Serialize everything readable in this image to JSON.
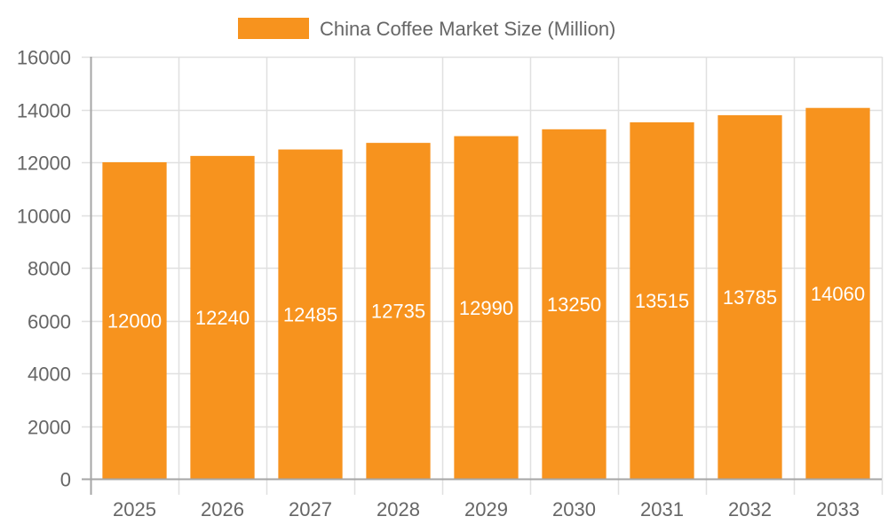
{
  "legend": {
    "label": "China Coffee Market Size (Million)",
    "swatch_color": "#F7931E"
  },
  "colors": {
    "bar": "#F7931E",
    "grid": "#E0E0E0",
    "axis": "#A6A6A6",
    "tick_text": "#666666",
    "value_text": "#FFFFFF"
  },
  "chart_data": {
    "type": "bar",
    "title": "",
    "xlabel": "",
    "ylabel": "",
    "legend": [
      "China Coffee Market Size (Million)"
    ],
    "legend_position": "top",
    "categories": [
      "2025",
      "2026",
      "2027",
      "2028",
      "2029",
      "2030",
      "2031",
      "2032",
      "2033"
    ],
    "series": [
      {
        "name": "China Coffee Market Size (Million)",
        "values": [
          12000,
          12240,
          12485,
          12735,
          12990,
          13250,
          13515,
          13785,
          14060
        ]
      }
    ],
    "values": [
      12000,
      12240,
      12485,
      12735,
      12990,
      13250,
      13515,
      13785,
      14060
    ],
    "ylim": [
      0,
      16000
    ],
    "yticks": [
      0,
      2000,
      4000,
      6000,
      8000,
      10000,
      12000,
      14000,
      16000
    ],
    "grid": true,
    "data_labels": true
  }
}
